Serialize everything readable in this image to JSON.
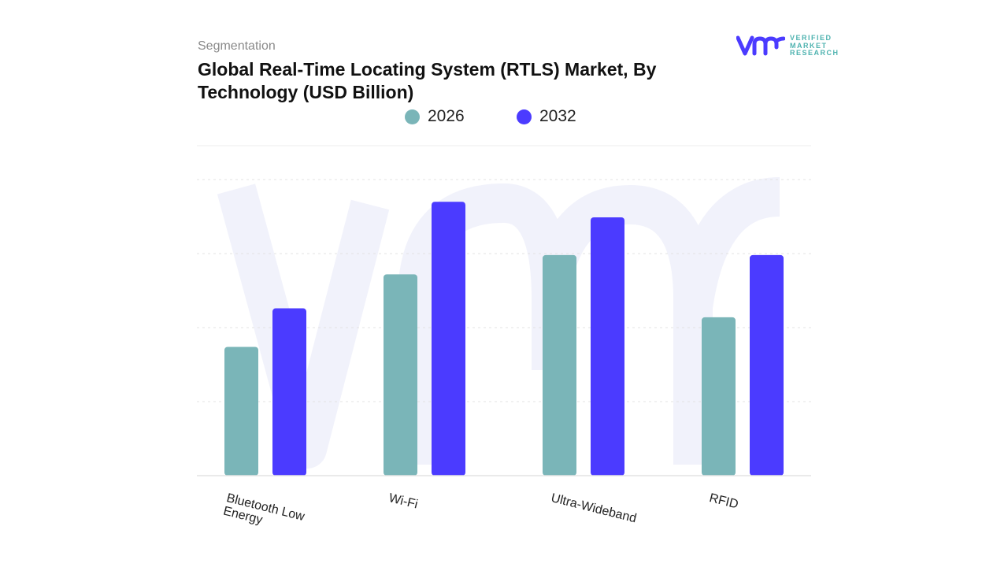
{
  "header": {
    "segment_label": "Segmentation",
    "title": "Global Real-Time Locating System (RTLS) Market, By Technology (USD Billion)"
  },
  "logo": {
    "name": "vmr-logo",
    "text_lines": [
      "VERIFIED",
      "MARKET",
      "RESEARCH"
    ]
  },
  "colors": {
    "2026": "#7ab5b8",
    "2032": "#4b3bff",
    "watermark": "#eef0fa",
    "grid": "#e3e3e3"
  },
  "chart_data": {
    "type": "bar",
    "title": "Global Real-Time Locating System (RTLS) Market, By Technology (USD Billion)",
    "categories": [
      "Bluetooth Low Energy",
      "Wi-Fi",
      "Ultra-Wideband",
      "RFID"
    ],
    "series": [
      {
        "name": "2026",
        "values": [
          1.74,
          2.72,
          2.98,
          2.14
        ]
      },
      {
        "name": "2032",
        "values": [
          2.26,
          3.7,
          3.49,
          2.98
        ]
      }
    ],
    "xlabel": "",
    "ylabel": "",
    "ylim": [
      0,
      4
    ],
    "grid": true,
    "y_tick_labels_shown": false,
    "legend_position": "top-center"
  }
}
